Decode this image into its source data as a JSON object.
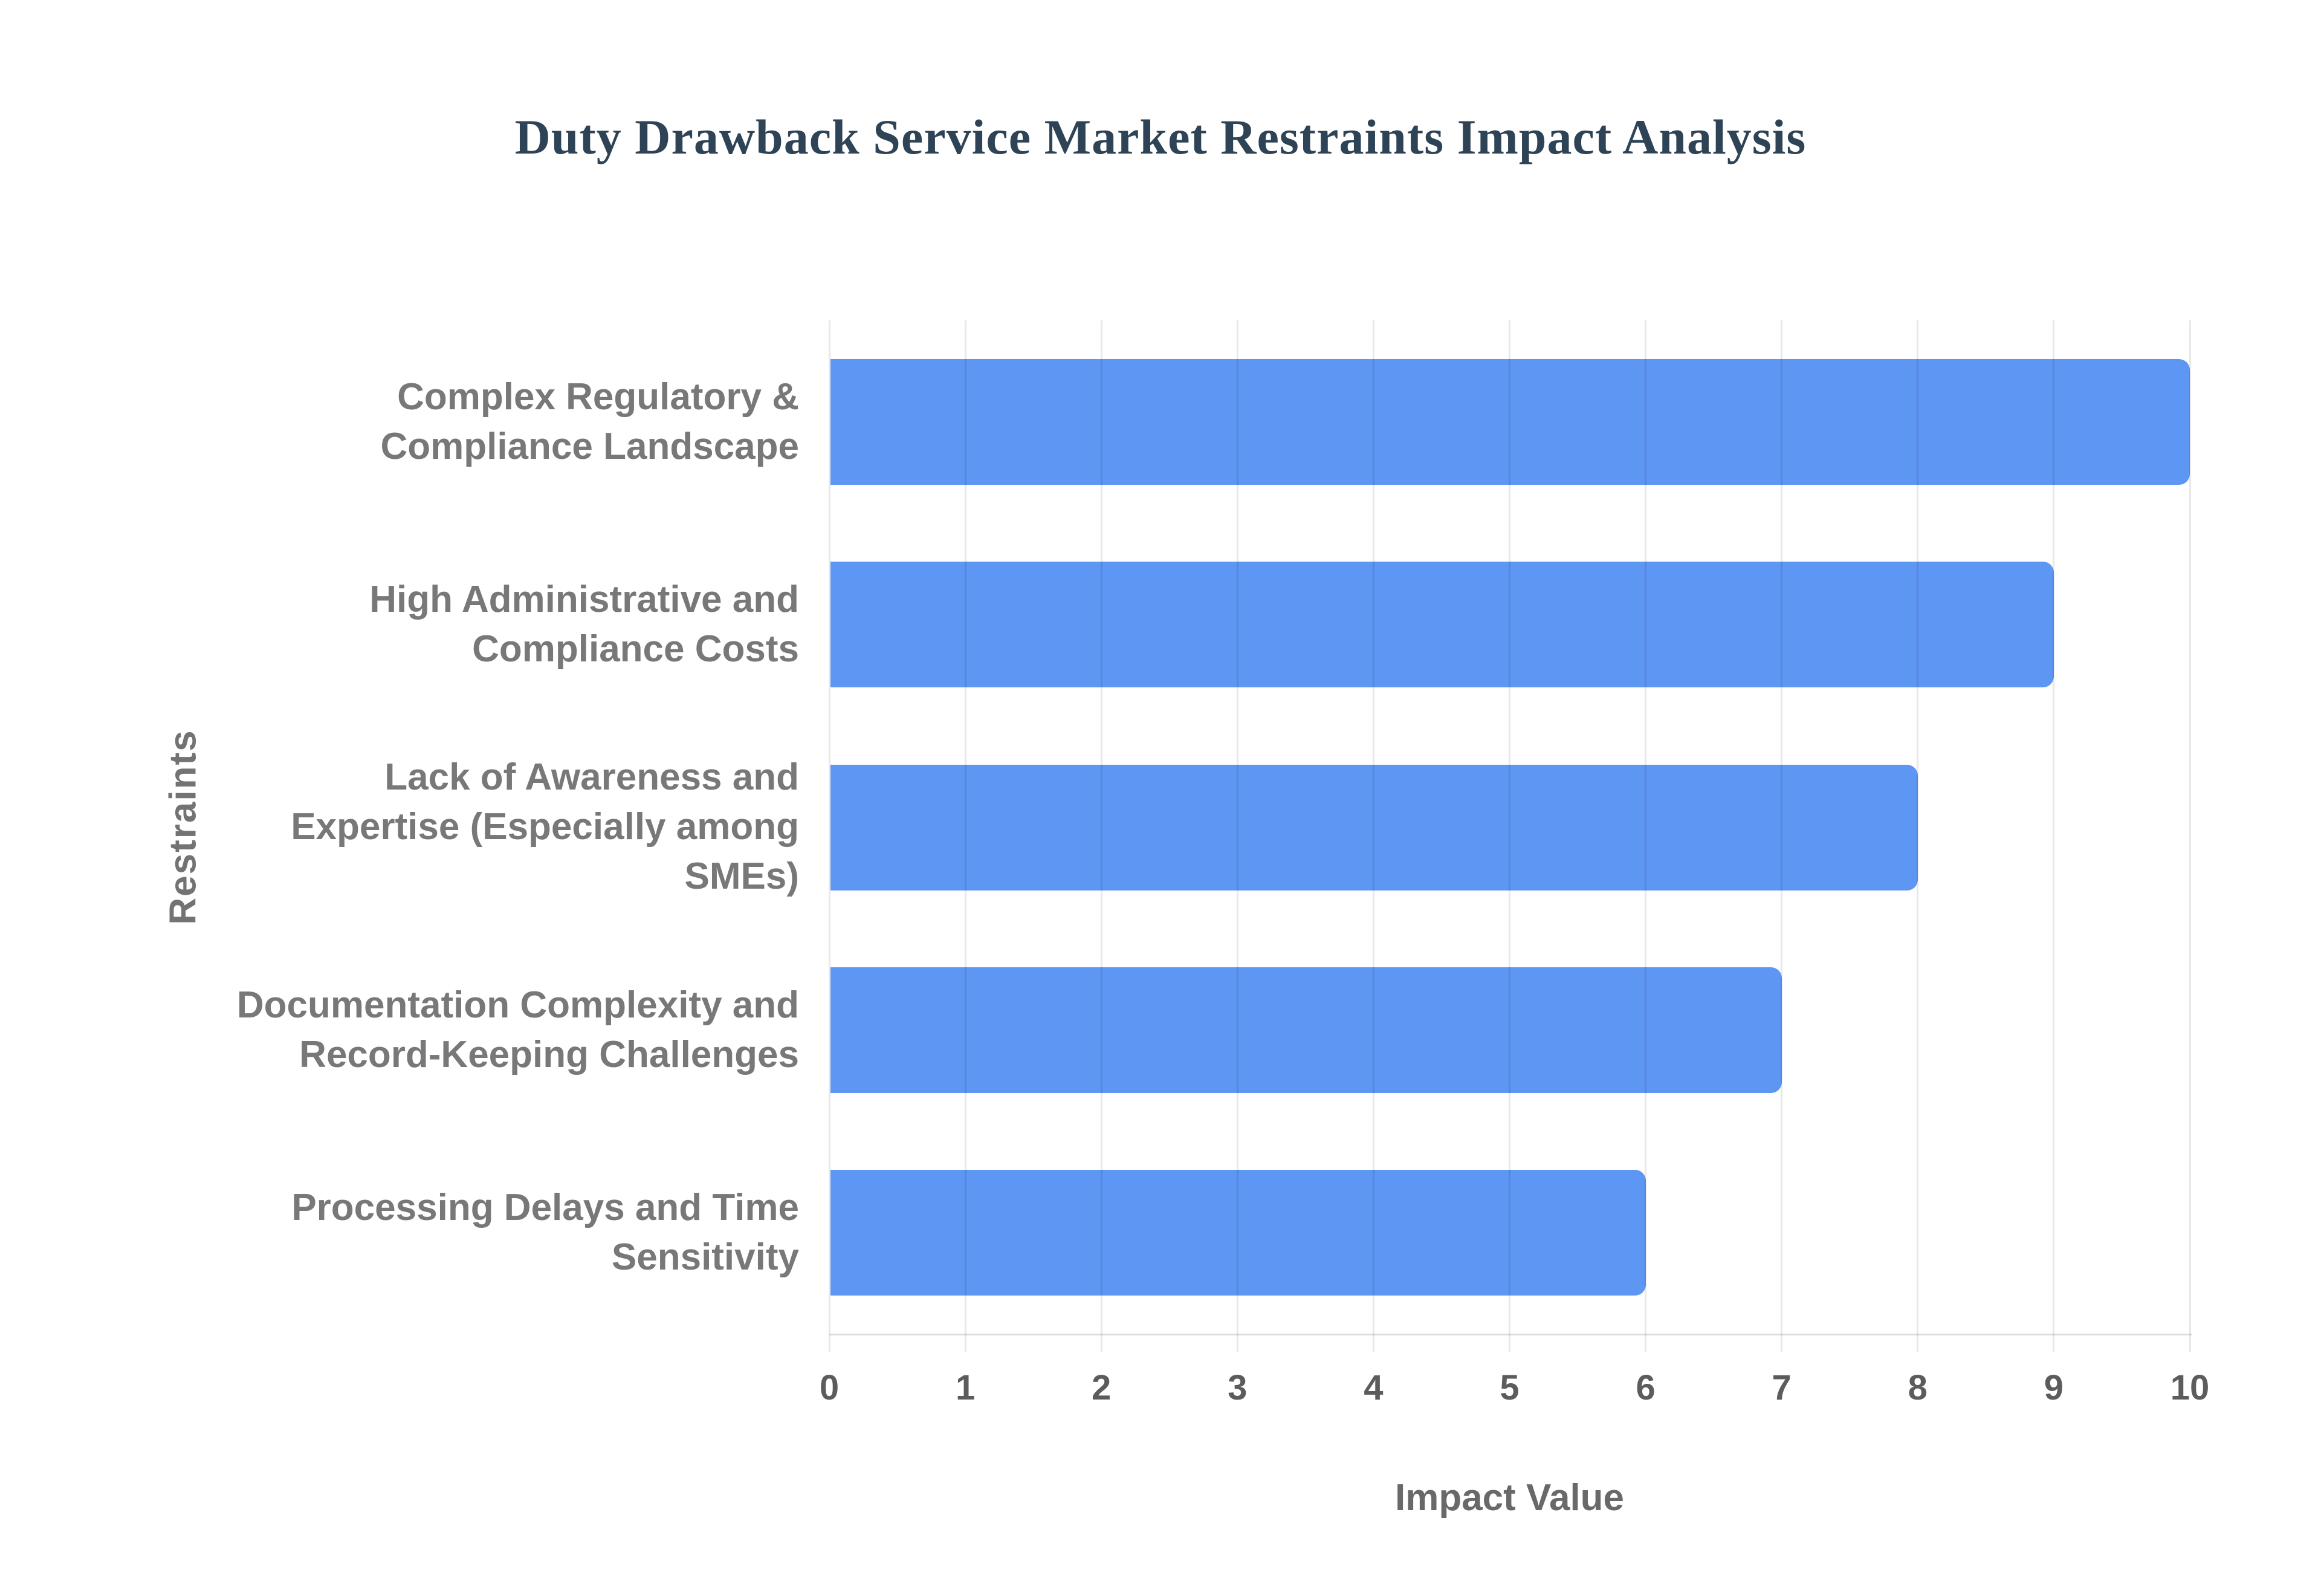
{
  "title": "Duty Drawback Service Market Restraints Impact Analysis",
  "axis": {
    "xlabel": "Impact Value",
    "ylabel": "Restraints"
  },
  "colors": {
    "bar": "#5e96f3",
    "title_text": "#2e4456",
    "category_label": "#787878",
    "tick_label": "#5c5c5c",
    "axis_title": "#696969",
    "background": "#ffffff"
  },
  "chart_data": {
    "type": "bar",
    "orientation": "horizontal",
    "title": "Duty Drawback Service Market Restraints Impact Analysis",
    "categories": [
      "Complex Regulatory & Compliance Landscape",
      "High Administrative and Compliance Costs",
      "Lack of Awareness and Expertise (Especially among SMEs)",
      "Documentation Complexity and Record-Keeping Challenges",
      "Processing Delays and Time Sensitivity"
    ],
    "categories_lines": [
      [
        "Complex Regulatory &",
        "Compliance Landscape"
      ],
      [
        "High Administrative and",
        "Compliance Costs"
      ],
      [
        "Lack of Awareness and",
        "Expertise (Especially among",
        "SMEs)"
      ],
      [
        "Documentation Complexity and",
        "Record-Keeping Challenges"
      ],
      [
        "Processing Delays and Time",
        "Sensitivity"
      ]
    ],
    "values": [
      10,
      9,
      8,
      7,
      6
    ],
    "xlabel": "Impact Value",
    "ylabel": "Restraints",
    "xlim": [
      0,
      10
    ],
    "xticks": [
      0,
      1,
      2,
      3,
      4,
      5,
      6,
      7,
      8,
      9,
      10
    ],
    "grid": true,
    "legend": false
  }
}
